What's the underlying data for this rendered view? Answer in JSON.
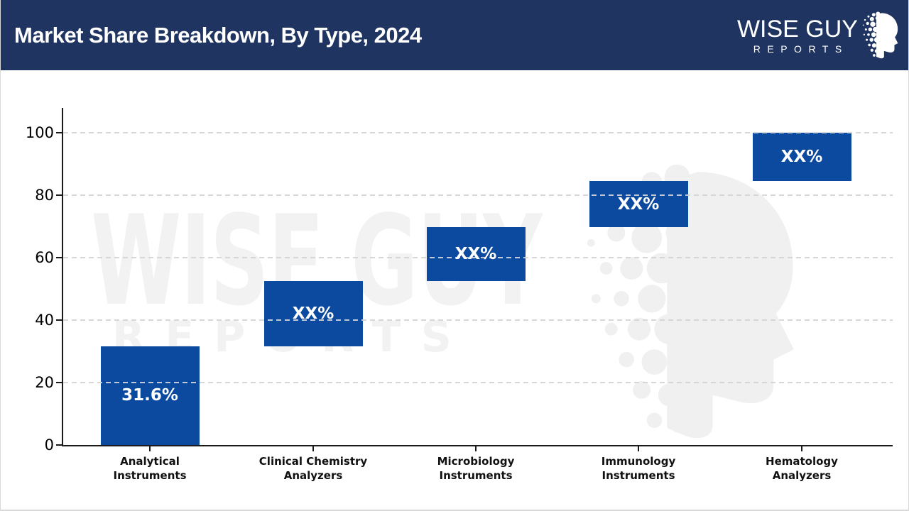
{
  "header": {
    "title": "Market Share Breakdown, By Type, 2024"
  },
  "logo": {
    "line1": "WISE GUY",
    "line2": "REPORTS"
  },
  "watermark": {
    "line1": "WISE GUY",
    "line2": "REPORTS"
  },
  "colors": {
    "header_bg": "#203461",
    "bar": "#0b4a9f",
    "bar_label": "#ffffff",
    "grid": "#d4d4d4",
    "axis": "#1a1a1a",
    "watermark": "#f2f2f2",
    "title_text": "#ffffff"
  },
  "chart_data": {
    "type": "bar",
    "subtype": "waterfall-floating-bars",
    "title": "Market Share Breakdown, By Type, 2024",
    "xlabel": "",
    "ylabel": "",
    "ylim": [
      0,
      107
    ],
    "yticks": [
      0,
      20,
      40,
      60,
      80,
      100
    ],
    "grid": "horizontal-dashed-over-bars",
    "legend": false,
    "categories": [
      [
        "Analytical",
        "Instruments"
      ],
      [
        "Clinical Chemistry",
        "Analyzers"
      ],
      [
        "Microbiology",
        "Instruments"
      ],
      [
        "Immunology",
        "Instruments"
      ],
      [
        "Hematology",
        "Analyzers"
      ]
    ],
    "bars": [
      {
        "category": "Analytical Instruments",
        "start": 0,
        "end": 31.6,
        "value_label": "31.6%"
      },
      {
        "category": "Clinical Chemistry Analyzers",
        "start": 31.6,
        "end": 52.6,
        "value_label": "XX%"
      },
      {
        "category": "Microbiology Instruments",
        "start": 52.6,
        "end": 69.8,
        "value_label": "XX%"
      },
      {
        "category": "Immunology Instruments",
        "start": 69.8,
        "end": 84.5,
        "value_label": "XX%"
      },
      {
        "category": "Hematology Analyzers",
        "start": 84.5,
        "end": 100,
        "value_label": "XX%"
      }
    ]
  }
}
